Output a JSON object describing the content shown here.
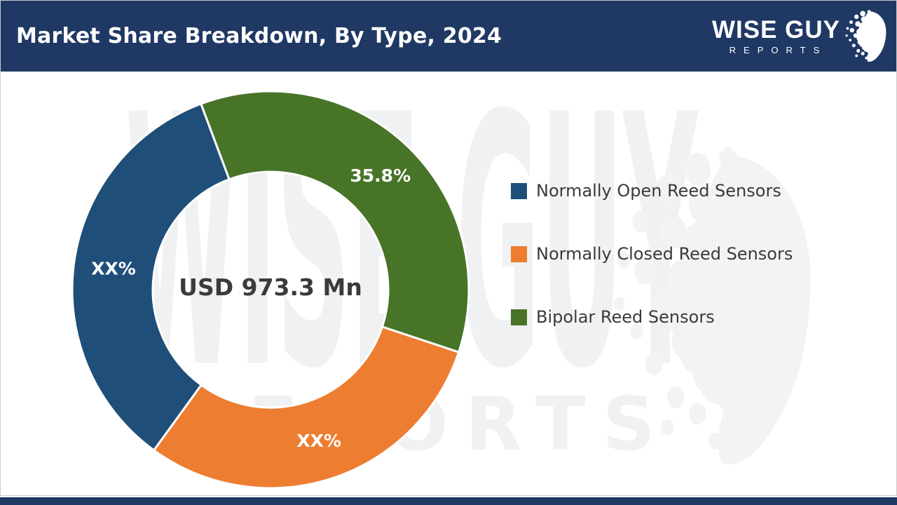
{
  "header": {
    "title": "Market Share Breakdown, By Type, 2024",
    "logo": {
      "brand": "WISE GUY",
      "sub": "REPORTS"
    }
  },
  "watermark": {
    "line1": "WISE GUY",
    "line2": "REPORTS"
  },
  "chart_data": {
    "type": "pie",
    "subtype": "donut",
    "title": "Market Share Breakdown, By Type, 2024",
    "center_label": "USD 973.3 Mn",
    "legend_position": "right",
    "start_angle_deg": 216,
    "draw_sequence": [
      0,
      2,
      1
    ],
    "segments": [
      {
        "label": "Normally Open Reed Sensors",
        "display_value": "XX%",
        "value_pct_est": 34.3,
        "color": "#1F4E79"
      },
      {
        "label": "Normally Closed Reed Sensors",
        "display_value": "XX%",
        "value_pct_est": 29.9,
        "color": "#ED7D31"
      },
      {
        "label": "Bipolar Reed Sensors",
        "display_value": "35.8%",
        "value_pct_est": 35.8,
        "color": "#487428"
      }
    ]
  },
  "colors": {
    "navy": "#1F3864",
    "text_dark": "#3A3A3A",
    "watermark_gray": "#F0F1F3"
  }
}
